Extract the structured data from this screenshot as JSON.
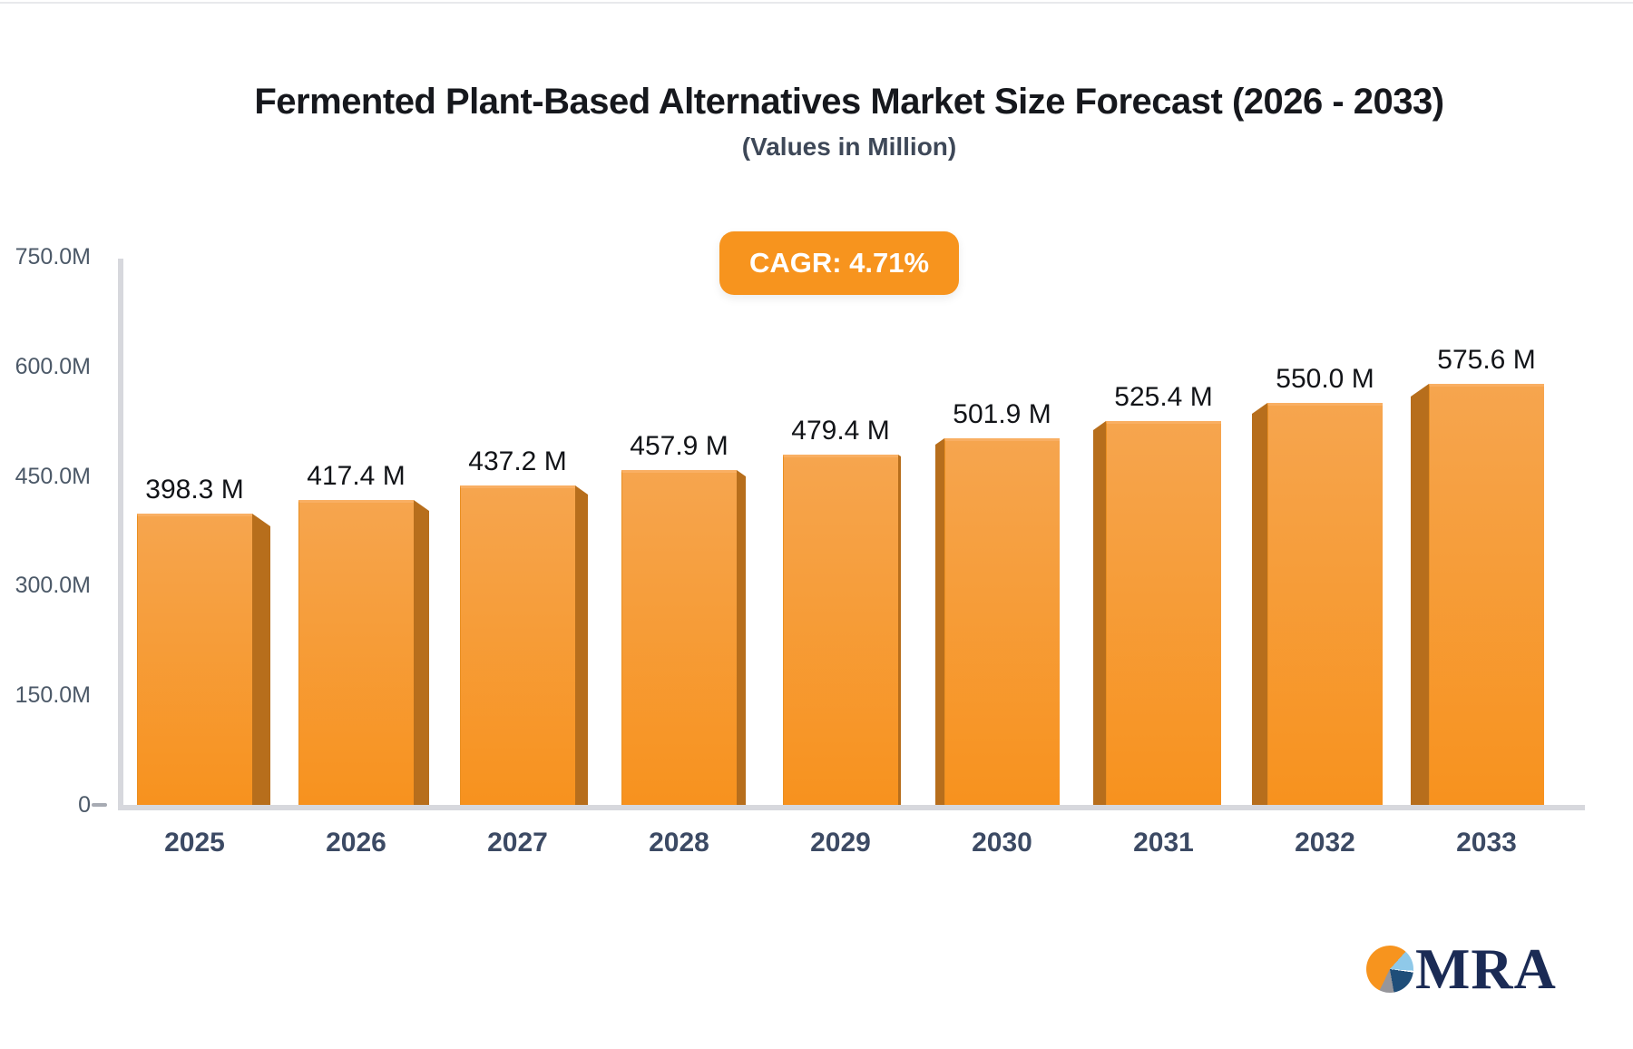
{
  "header": {
    "title": "Fermented Plant-Based Alternatives Market Size Forecast (2026 - 2033)",
    "subtitle": "(Values in Million)"
  },
  "badge": {
    "label": "CAGR: 4.71%"
  },
  "chart_data": {
    "type": "bar",
    "title": "Fermented Plant-Based Alternatives Market Size Forecast (2026 - 2033)",
    "subtitle": "(Values in Million)",
    "categories": [
      "2025",
      "2026",
      "2027",
      "2028",
      "2029",
      "2030",
      "2031",
      "2032",
      "2033"
    ],
    "values": [
      398.3,
      417.4,
      437.2,
      457.9,
      479.4,
      501.9,
      525.4,
      550.0,
      575.6
    ],
    "value_labels": [
      "398.3 M",
      "417.4 M",
      "437.2 M",
      "457.9 M",
      "479.4 M",
      "501.9 M",
      "525.4 M",
      "550.0 M",
      "575.6 M"
    ],
    "unit": "Million",
    "cagr": "4.71%",
    "xlabel": "",
    "ylabel": "",
    "ylim": [
      0,
      750
    ],
    "yticks": [
      {
        "value": 750,
        "label": "750.0M"
      },
      {
        "value": 600,
        "label": "600.0M"
      },
      {
        "value": 450,
        "label": "450.0M"
      },
      {
        "value": 300,
        "label": "300.0M"
      },
      {
        "value": 150,
        "label": "150.0M"
      },
      {
        "value": 0,
        "label": "0"
      }
    ],
    "grid": false,
    "legend": false,
    "bar_style": "3d-perspective"
  },
  "colors": {
    "bar_face_top": "#F6A54E",
    "bar_face_bottom": "#F7921E",
    "bar_face_edge": "#E98F22",
    "bar_cap_highlight": "#F9AF63",
    "bar_side": "#B76E1C",
    "axis": "#D7D8DD",
    "zero_dash": "#A7ABB3",
    "tick_label": "#4C5968",
    "year_label": "#3C4A64",
    "value_label": "#121418",
    "title": "#16181D",
    "subtitle": "#3E4858",
    "badge_bg": "#F7941E",
    "badge_text": "#FFFFFF",
    "logo_navy": "#1B2B55",
    "logo_orange": "#F7941E",
    "logo_lightblue": "#8FC9E9",
    "logo_blue": "#1F4E79",
    "logo_gray": "#96969B"
  },
  "logo": {
    "text": "MRA"
  }
}
